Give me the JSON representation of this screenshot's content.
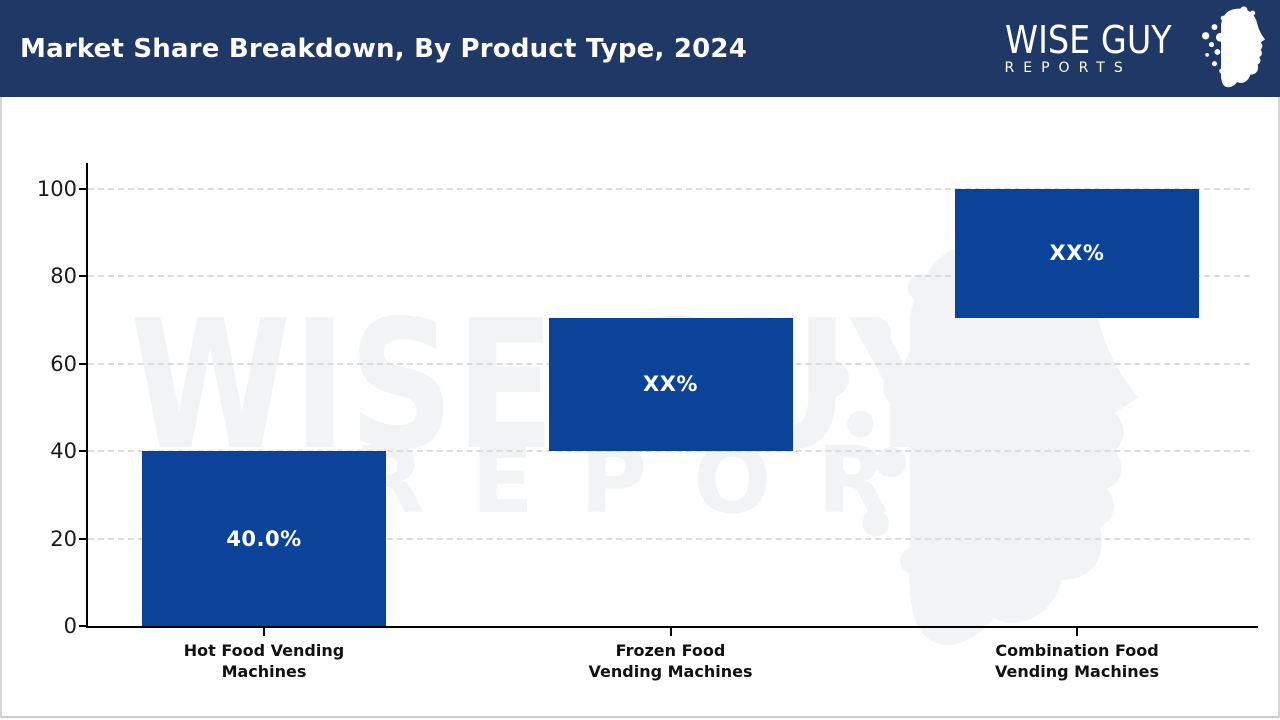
{
  "header": {
    "title": "Market Share Breakdown, By Product Type, 2024",
    "logo": {
      "line1": "WISE GUY",
      "line2": "REPORTS"
    }
  },
  "watermark": {
    "line1": "WISE GUY",
    "line2": "REPORTS"
  },
  "chart_data": {
    "type": "bar",
    "subtype": "floating-stacked-steps",
    "title": "Market Share Breakdown, By Product Type, 2024",
    "categories": [
      [
        "Hot Food Vending",
        "Machines"
      ],
      [
        "Frozen Food",
        "Vending Machines"
      ],
      [
        "Combination Food",
        "Vending Machines"
      ]
    ],
    "segments": [
      {
        "category": "Hot Food Vending Machines",
        "from": 0,
        "to": 40,
        "label": "40.0%"
      },
      {
        "category": "Frozen Food Vending Machines",
        "from": 40,
        "to": 70.5,
        "label": "XX%"
      },
      {
        "category": "Combination Food Vending Machines",
        "from": 70.5,
        "to": 100,
        "label": "XX%"
      }
    ],
    "ylim": [
      0,
      100
    ],
    "yticks": [
      0,
      20,
      40,
      60,
      80,
      100
    ],
    "xlabel": "",
    "ylabel": "",
    "grid": "horizontal-dashed",
    "legend": "none"
  },
  "colors": {
    "header_bg": "#1f3865",
    "bar": "#0a4397",
    "grid": "#dcdcdc",
    "axis": "#000000",
    "bar_label": "#ffffff",
    "watermark": "#f2f3f5"
  }
}
